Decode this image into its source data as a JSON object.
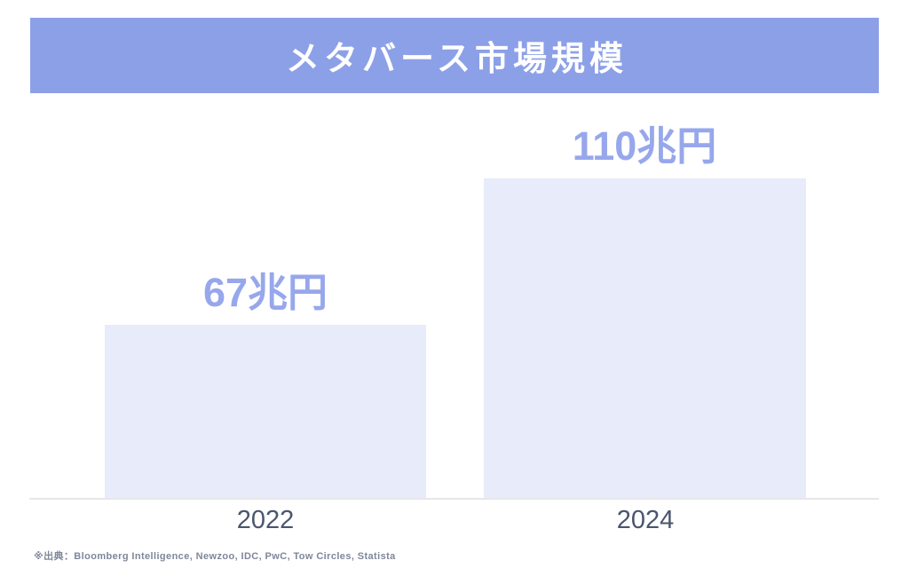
{
  "chart_data": {
    "type": "bar",
    "title": "メタバース市場規模",
    "categories": [
      "2022",
      "2024"
    ],
    "values": [
      67,
      110
    ],
    "unit": "兆円",
    "value_labels": [
      "67兆円",
      "110兆円"
    ],
    "source": "※出典：Bloomberg Intelligence, Newzoo, IDC, PwC, Tow Circles, Statista",
    "xlabel": "",
    "ylabel": "",
    "ylim": [
      0,
      120
    ],
    "grid": false,
    "legend": false,
    "colors": {
      "title_banner": "#8CA0E8",
      "title_text": "#FFFFFF",
      "bar_fill": "#E8EBF9",
      "value_label": "#97A7EC",
      "axis_label": "#4A566E",
      "baseline": "#E6E6EB",
      "source_text": "#7E8799",
      "background": "#FFFFFF"
    }
  }
}
